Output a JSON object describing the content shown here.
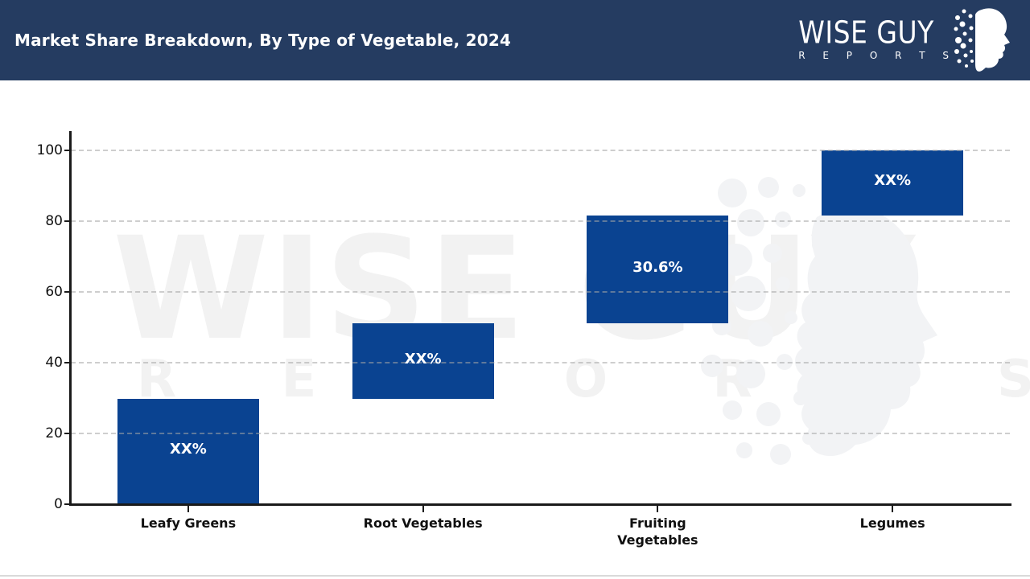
{
  "header": {
    "title": "Market Share Breakdown, By Type of Vegetable, 2024",
    "bg_color": "#253c61",
    "logo": {
      "name": "WISE GUY",
      "reports": "R E P O R T S"
    }
  },
  "watermark": {
    "big": "WISE GUY",
    "small": "R E P O R T S",
    "color": "#f2f2f2"
  },
  "chart_data": {
    "type": "bar",
    "variant": "floating_waterfall",
    "title": "Market Share Breakdown, By Type of Vegetable, 2024",
    "categories": [
      "Leafy Greens",
      "Root Vegetables",
      "Fruiting Vegetables",
      "Legumes"
    ],
    "segments": [
      {
        "category": "Leafy Greens",
        "start": 0,
        "end": 29.8,
        "height": 29.8,
        "label": "XX%"
      },
      {
        "category": "Root Vegetables",
        "start": 29.8,
        "end": 51.1,
        "height": 21.3,
        "label": "XX%"
      },
      {
        "category": "Fruiting Vegetables",
        "start": 51.1,
        "end": 81.7,
        "height": 30.6,
        "label": "30.6%"
      },
      {
        "category": "Legumes",
        "start": 81.7,
        "end": 100,
        "height": 18.3,
        "label": "XX%"
      }
    ],
    "yticks": [
      0,
      20,
      40,
      60,
      80,
      100
    ],
    "ylim": [
      0,
      106
    ],
    "xlabel": "",
    "ylabel": "",
    "grid": {
      "show": true,
      "orientation": "horizontal",
      "style": "dashed"
    },
    "legend": "none",
    "bar_color": "#0a4391",
    "bar_label_color": "#ffffff",
    "axis_color": "#1a1a1a",
    "gridline_color": "#d8d8d8"
  }
}
